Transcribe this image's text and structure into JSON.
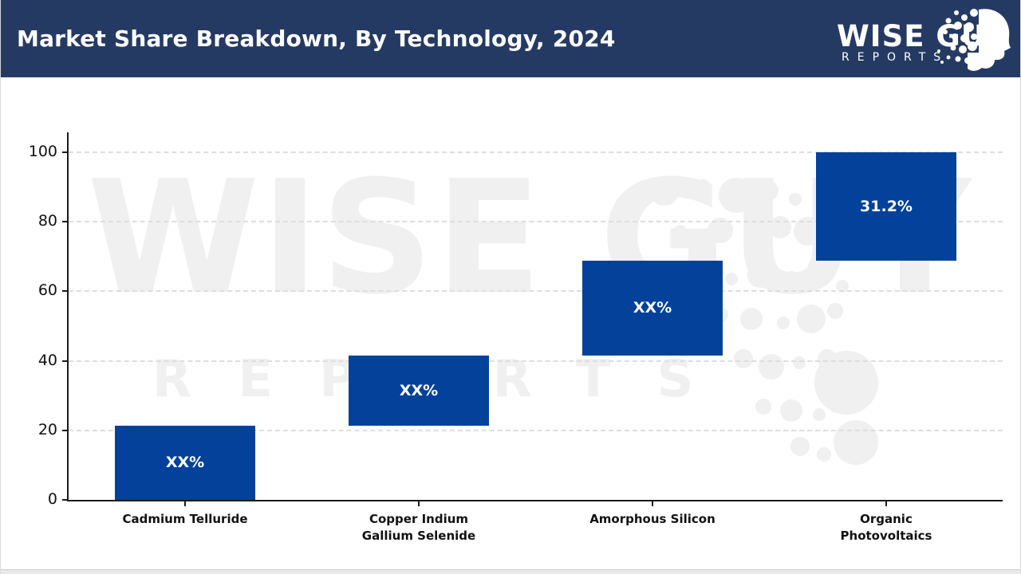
{
  "header": {
    "title": "Market Share Breakdown, By Technology, 2024",
    "brand": {
      "wordmark": "WISE GUY",
      "subtext": "REPORTS"
    },
    "bg_color": "#253a63"
  },
  "watermark": {
    "line1": "WISE GUY",
    "line2": "REPORTS",
    "color": "#f0f0f1"
  },
  "chart_data": {
    "type": "bar",
    "subtype": "waterfall-floating-bars",
    "title": "Market Share Breakdown, By Technology, 2024",
    "xlabel": "",
    "ylabel": "",
    "ylim": [
      0,
      100
    ],
    "yticks": [
      0,
      20,
      40,
      60,
      80,
      100
    ],
    "grid": "horizontal-dashed",
    "legend": "none",
    "bar_color": "#04419b",
    "value_label_color": "#ffffff",
    "categories": [
      "Cadmium Telluride",
      "Copper Indium Gallium Selenide",
      "Amorphous Silicon",
      "Organic Photovoltaics"
    ],
    "category_label_lines": [
      [
        "Cadmium Telluride"
      ],
      [
        "Copper Indium",
        "Gallium Selenide"
      ],
      [
        "Amorphous Silicon"
      ],
      [
        "Organic",
        "Photovoltaics"
      ]
    ],
    "segments": [
      {
        "category": "Cadmium Telluride",
        "start": 0,
        "end": 21.4,
        "label": "XX%"
      },
      {
        "category": "Copper Indium Gallium Selenide",
        "start": 21.4,
        "end": 41.6,
        "label": "XX%"
      },
      {
        "category": "Amorphous Silicon",
        "start": 41.6,
        "end": 68.8,
        "label": "XX%"
      },
      {
        "category": "Organic Photovoltaics",
        "start": 68.8,
        "end": 100.0,
        "label": "31.2%",
        "value": 31.2
      }
    ]
  }
}
